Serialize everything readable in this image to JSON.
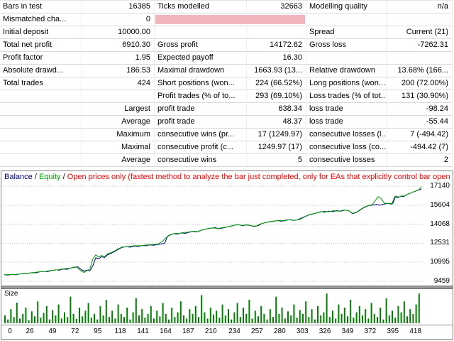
{
  "report_table": {
    "error_bar_color": "#f1b6bb",
    "rows": [
      {
        "cells": [
          "Bars in test",
          "16385",
          "Ticks modelled",
          "32663",
          "Modelling quality",
          "n/a"
        ]
      },
      {
        "cells": [
          "Mismatched cha...",
          "0",
          "",
          "",
          "",
          ""
        ],
        "error_bar": true
      },
      {
        "cells": [
          "Initial deposit",
          "10000.00",
          "",
          "",
          "Spread",
          "Current (21)"
        ]
      },
      {
        "cells": [
          "Total net profit",
          "6910.30",
          "Gross profit",
          "14172.62",
          "Gross loss",
          "-7262.31"
        ]
      },
      {
        "cells": [
          "Profit factor",
          "1.95",
          "Expected payoff",
          "16.30",
          "",
          ""
        ]
      },
      {
        "cells": [
          "Absolute drawd...",
          "186.53",
          "Maximal drawdown",
          "1663.93 (13...",
          "Relative drawdown",
          "13.68% (166..."
        ]
      },
      {
        "cells": [
          "Total trades",
          "424",
          "Short positions (won...",
          "224 (66.52%)",
          "Long positions (won...",
          "200 (72.00%)"
        ]
      },
      {
        "cells": [
          "",
          "",
          "Profit trades (% of to...",
          "293 (69.10%)",
          "Loss trades (% of tot...",
          "131 (30.90%)"
        ]
      },
      {
        "cells": [
          "",
          "Largest",
          "profit trade",
          "638.34",
          "loss trade",
          "-98.24"
        ]
      },
      {
        "cells": [
          "",
          "Average",
          "profit trade",
          "48.37",
          "loss trade",
          "-55.44"
        ]
      },
      {
        "cells": [
          "",
          "Maximum",
          "consecutive wins (pr...",
          "17 (1249.97)",
          "consecutive losses (l...",
          "7 (-494.42)"
        ]
      },
      {
        "cells": [
          "",
          "Maximal",
          "consecutive profit (c...",
          "1249.97 (17)",
          "consecutive loss (co...",
          "-494.42 (7)"
        ]
      },
      {
        "cells": [
          "",
          "Average",
          "consecutive wins",
          "5",
          "consecutive losses",
          "2"
        ]
      }
    ]
  },
  "chart": {
    "legend": {
      "balance_label": "Balance",
      "separator": " / ",
      "equity_label": "Equity",
      "note": "Open prices only (fastest method to analyze the bar just completed, only for EAs that explicitly control bar opening)",
      "balance_color": "#000080",
      "equity_color": "#00A000",
      "note_color": "#FF0000"
    }
  },
  "chart_data": {
    "type": "line",
    "title": "Balance / Equity",
    "x_max": 424,
    "y_ticks": [
      17140,
      15604,
      14068,
      12531,
      10995,
      9459
    ],
    "x_ticks": [
      0,
      26,
      49,
      72,
      95,
      118,
      141,
      164,
      187,
      210,
      234,
      257,
      280,
      303,
      326,
      349,
      372,
      395,
      418
    ],
    "series": [
      {
        "name": "Balance",
        "color": "#000080",
        "points": [
          [
            0,
            10000
          ],
          [
            4,
            9960
          ],
          [
            8,
            10020
          ],
          [
            12,
            9980
          ],
          [
            16,
            10060
          ],
          [
            20,
            10110
          ],
          [
            24,
            10090
          ],
          [
            28,
            10160
          ],
          [
            32,
            10140
          ],
          [
            36,
            10220
          ],
          [
            40,
            10260
          ],
          [
            44,
            10240
          ],
          [
            48,
            10330
          ],
          [
            52,
            10380
          ],
          [
            56,
            10360
          ],
          [
            60,
            10450
          ],
          [
            64,
            10430
          ],
          [
            68,
            10540
          ],
          [
            72,
            10600
          ],
          [
            75,
            10630
          ],
          [
            78,
            10420
          ],
          [
            81,
            10280
          ],
          [
            84,
            10360
          ],
          [
            87,
            10310
          ],
          [
            90,
            10700
          ],
          [
            93,
            11350
          ],
          [
            96,
            11280
          ],
          [
            99,
            11450
          ],
          [
            102,
            11380
          ],
          [
            105,
            11600
          ],
          [
            108,
            11700
          ],
          [
            112,
            11850
          ],
          [
            116,
            12050
          ],
          [
            120,
            12200
          ],
          [
            124,
            12260
          ],
          [
            128,
            12210
          ],
          [
            132,
            12300
          ],
          [
            136,
            12270
          ],
          [
            140,
            12350
          ],
          [
            144,
            12330
          ],
          [
            148,
            12400
          ],
          [
            152,
            12370
          ],
          [
            156,
            12430
          ],
          [
            160,
            12480
          ],
          [
            163,
            12520
          ],
          [
            166,
            13080
          ],
          [
            169,
            13200
          ],
          [
            172,
            13300
          ],
          [
            176,
            13270
          ],
          [
            180,
            13370
          ],
          [
            184,
            13330
          ],
          [
            188,
            13420
          ],
          [
            192,
            13480
          ],
          [
            196,
            13440
          ],
          [
            200,
            13580
          ],
          [
            205,
            13680
          ],
          [
            210,
            13740
          ],
          [
            214,
            13790
          ],
          [
            218,
            13700
          ],
          [
            222,
            13760
          ],
          [
            226,
            13830
          ],
          [
            230,
            13900
          ],
          [
            234,
            13990
          ],
          [
            238,
            14040
          ],
          [
            242,
            13950
          ],
          [
            246,
            14010
          ],
          [
            250,
            13960
          ],
          [
            254,
            13890
          ],
          [
            258,
            13950
          ],
          [
            262,
            14120
          ],
          [
            266,
            14210
          ],
          [
            270,
            14260
          ],
          [
            274,
            14310
          ],
          [
            278,
            14360
          ],
          [
            282,
            14310
          ],
          [
            286,
            14390
          ],
          [
            290,
            14430
          ],
          [
            294,
            14370
          ],
          [
            298,
            14420
          ],
          [
            302,
            14560
          ],
          [
            306,
            14700
          ],
          [
            310,
            14820
          ],
          [
            314,
            14900
          ],
          [
            318,
            14990
          ],
          [
            322,
            15080
          ],
          [
            326,
            15040
          ],
          [
            330,
            15120
          ],
          [
            334,
            15080
          ],
          [
            338,
            15160
          ],
          [
            342,
            15120
          ],
          [
            346,
            15200
          ],
          [
            350,
            15160
          ],
          [
            354,
            14920
          ],
          [
            358,
            15010
          ],
          [
            362,
            15230
          ],
          [
            366,
            15420
          ],
          [
            370,
            15560
          ],
          [
            374,
            15610
          ],
          [
            378,
            15660
          ],
          [
            382,
            15610
          ],
          [
            386,
            15690
          ],
          [
            390,
            15740
          ],
          [
            394,
            15690
          ],
          [
            397,
            16280
          ],
          [
            400,
            16200
          ],
          [
            403,
            16330
          ],
          [
            406,
            16290
          ],
          [
            409,
            16450
          ],
          [
            412,
            16550
          ],
          [
            415,
            16640
          ],
          [
            418,
            16730
          ],
          [
            421,
            16830
          ],
          [
            424,
            16910
          ]
        ]
      },
      {
        "name": "Equity",
        "color": "#00A000",
        "points": [
          [
            0,
            10000
          ],
          [
            6,
            10000
          ],
          [
            12,
            10010
          ],
          [
            18,
            10080
          ],
          [
            24,
            10110
          ],
          [
            30,
            10170
          ],
          [
            36,
            10230
          ],
          [
            42,
            10260
          ],
          [
            48,
            10350
          ],
          [
            54,
            10380
          ],
          [
            60,
            10470
          ],
          [
            66,
            10500
          ],
          [
            72,
            10620
          ],
          [
            75,
            10520
          ],
          [
            78,
            10300
          ],
          [
            81,
            10170
          ],
          [
            84,
            10330
          ],
          [
            87,
            10450
          ],
          [
            90,
            11250
          ],
          [
            93,
            11600
          ],
          [
            96,
            11420
          ],
          [
            99,
            11550
          ],
          [
            102,
            11450
          ],
          [
            105,
            11680
          ],
          [
            108,
            11760
          ],
          [
            112,
            11900
          ],
          [
            116,
            12100
          ],
          [
            120,
            12230
          ],
          [
            126,
            12260
          ],
          [
            132,
            12330
          ],
          [
            138,
            12330
          ],
          [
            144,
            12380
          ],
          [
            150,
            12420
          ],
          [
            156,
            12450
          ],
          [
            161,
            12700
          ],
          [
            164,
            12950
          ],
          [
            167,
            13150
          ],
          [
            170,
            13260
          ],
          [
            174,
            13330
          ],
          [
            178,
            13310
          ],
          [
            182,
            13390
          ],
          [
            187,
            13430
          ],
          [
            192,
            13500
          ],
          [
            197,
            13470
          ],
          [
            202,
            13620
          ],
          [
            207,
            13710
          ],
          [
            212,
            13770
          ],
          [
            217,
            13720
          ],
          [
            222,
            13790
          ],
          [
            227,
            13860
          ],
          [
            232,
            13950
          ],
          [
            237,
            14030
          ],
          [
            242,
            13970
          ],
          [
            247,
            14020
          ],
          [
            252,
            13930
          ],
          [
            256,
            13920
          ],
          [
            260,
            14080
          ],
          [
            265,
            14190
          ],
          [
            270,
            14280
          ],
          [
            275,
            14330
          ],
          [
            280,
            14380
          ],
          [
            285,
            14330
          ],
          [
            290,
            14440
          ],
          [
            295,
            14390
          ],
          [
            300,
            14440
          ],
          [
            305,
            14640
          ],
          [
            310,
            14840
          ],
          [
            315,
            14930
          ],
          [
            320,
            15020
          ],
          [
            325,
            15110
          ],
          [
            330,
            15070
          ],
          [
            335,
            15160
          ],
          [
            340,
            15110
          ],
          [
            345,
            15210
          ],
          [
            350,
            15170
          ],
          [
            354,
            14950
          ],
          [
            358,
            15030
          ],
          [
            362,
            15260
          ],
          [
            366,
            15450
          ],
          [
            370,
            15580
          ],
          [
            374,
            15640
          ],
          [
            377,
            15950
          ],
          [
            380,
            16300
          ],
          [
            383,
            16150
          ],
          [
            386,
            15780
          ],
          [
            389,
            15740
          ],
          [
            392,
            15760
          ],
          [
            395,
            15710
          ],
          [
            398,
            16340
          ],
          [
            401,
            16260
          ],
          [
            404,
            16360
          ],
          [
            407,
            16330
          ],
          [
            410,
            16490
          ],
          [
            413,
            16580
          ],
          [
            416,
            16680
          ],
          [
            419,
            16780
          ],
          [
            422,
            16890
          ],
          [
            424,
            17100
          ]
        ]
      }
    ],
    "size_histogram": {
      "label": "Size",
      "color": "#008000",
      "values": [
        0.25,
        0.12,
        0.45,
        0.2,
        0.66,
        0.15,
        0.3,
        0.5,
        0.1,
        0.38,
        0.22,
        0.7,
        0.18,
        0.33,
        0.55,
        0.12,
        0.42,
        0.25,
        0.6,
        0.15,
        0.35,
        0.2,
        0.85,
        0.3,
        0.14,
        0.5,
        0.22,
        0.4,
        0.65,
        0.18,
        0.3,
        0.12,
        0.55,
        0.25,
        0.75,
        0.2,
        0.4,
        0.15,
        0.6,
        0.3,
        0.2,
        0.5,
        0.12,
        0.35,
        0.8,
        0.25,
        0.45,
        0.18,
        0.3,
        0.55,
        0.15,
        0.4,
        0.22,
        0.65,
        0.3,
        0.12,
        0.5,
        0.2,
        0.35,
        0.7,
        0.25,
        0.15,
        0.45,
        0.3,
        0.55,
        0.2,
        0.9,
        0.35,
        0.15,
        0.5,
        0.28,
        0.4,
        0.18,
        0.6,
        0.25,
        0.45,
        0.12,
        0.35,
        0.65,
        0.2,
        0.5,
        0.3,
        0.75,
        0.15,
        0.4,
        0.22,
        0.55,
        0.3,
        0.12,
        0.45,
        0.2,
        0.85,
        0.3,
        0.5,
        0.15,
        0.38,
        0.25,
        0.6,
        0.18,
        0.42,
        0.3,
        0.7,
        0.2,
        0.45,
        0.12,
        0.55,
        0.25,
        0.35,
        0.95,
        0.2,
        0.4,
        0.15,
        0.6,
        0.3,
        0.5,
        0.22,
        0.75,
        0.18,
        0.35,
        0.55,
        0.25,
        0.45,
        0.15,
        0.65,
        0.3,
        0.2,
        0.5,
        0.12,
        0.8,
        0.25,
        0.4,
        0.18,
        0.55,
        0.35,
        0.7,
        0.22,
        0.45,
        0.3,
        0.6,
        0.95
      ]
    }
  }
}
